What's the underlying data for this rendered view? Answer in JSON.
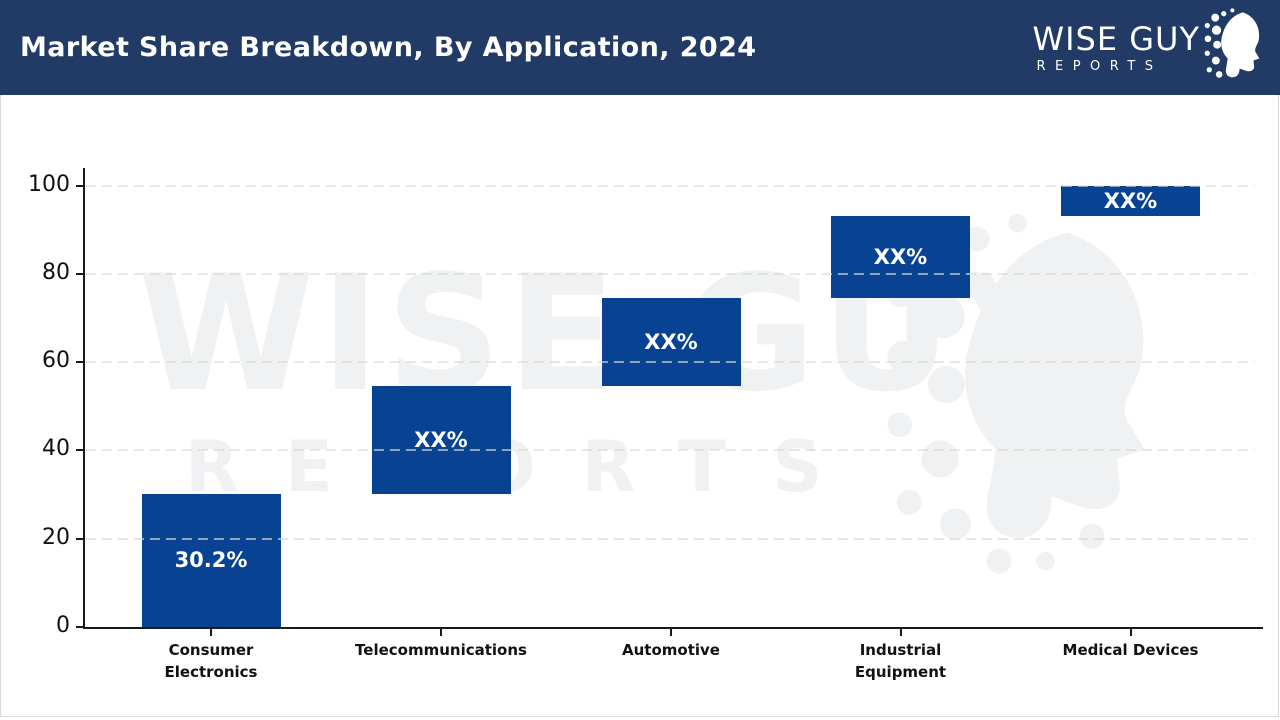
{
  "header": {
    "title": "Market Share Breakdown, By Application, 2024",
    "bg_color": "#213a66",
    "logo": {
      "line1": "WISE GUY",
      "line2": "REPORTS"
    }
  },
  "watermark": {
    "line1": "WISE GUY",
    "line2": "REPORTS"
  },
  "chart_data": {
    "type": "bar",
    "subtype": "waterfall",
    "title": "Market Share Breakdown, By Application, 2024",
    "categories": [
      "Consumer Electronics",
      "Telecommunications",
      "Automotive",
      "Industrial Equipment",
      "Medical Devices"
    ],
    "categories_display": [
      "Consumer\nElectronics",
      "Telecommunications",
      "Automotive",
      "Industrial\nEquipment",
      "Medical Devices"
    ],
    "segments": [
      {
        "category": "Consumer Electronics",
        "start": 0,
        "end": 30.2,
        "label": "30.2%"
      },
      {
        "category": "Telecommunications",
        "start": 30.2,
        "end": 54.5,
        "label": "XX%"
      },
      {
        "category": "Automotive",
        "start": 54.5,
        "end": 74.5,
        "label": "XX%"
      },
      {
        "category": "Industrial Equipment",
        "start": 74.5,
        "end": 93.0,
        "label": "XX%"
      },
      {
        "category": "Medical Devices",
        "start": 93.0,
        "end": 100.0,
        "label": "XX%"
      }
    ],
    "yticks": [
      0,
      20,
      40,
      60,
      80,
      100
    ],
    "ylim": [
      0,
      104
    ],
    "xlabel": "",
    "ylabel": "",
    "grid": "horizontal-dashed",
    "legend": null,
    "bar_color": "#074392",
    "bar_label_color": "#ffffff"
  }
}
